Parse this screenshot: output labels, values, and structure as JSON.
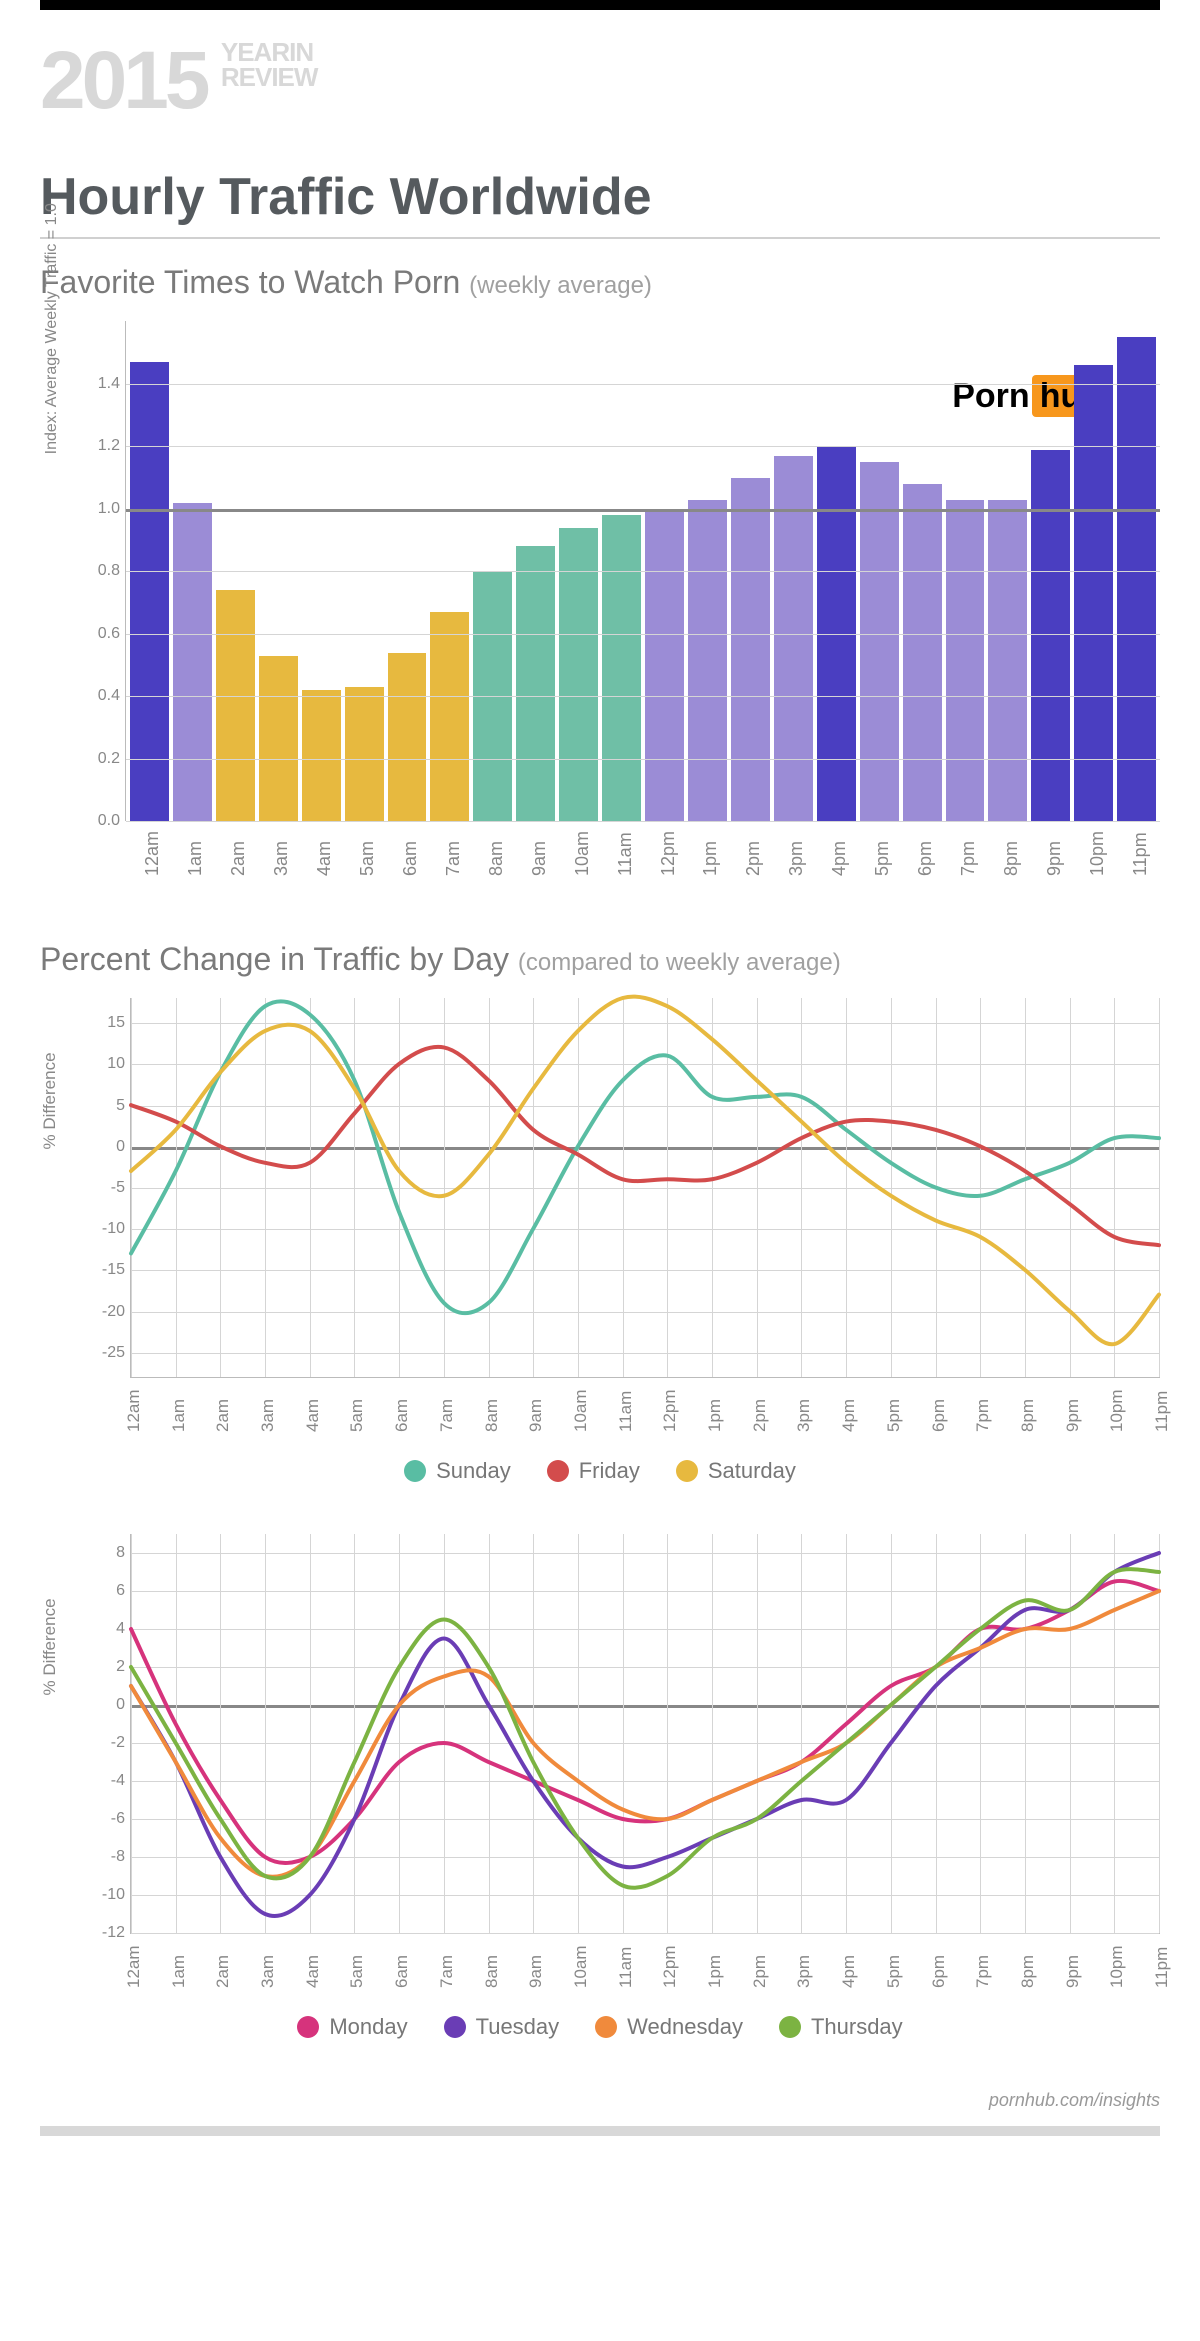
{
  "header": {
    "year": "2015",
    "sub_line1": "YEARIN",
    "sub_line2": "REVIEW"
  },
  "main_title": "Hourly Traffic Worldwide",
  "brand": {
    "left": "Porn",
    "right": "hub",
    "orange": "#f7971d"
  },
  "bar_chart": {
    "title": "Favorite Times to Watch Porn",
    "title_paren": "(weekly average)",
    "y_label": "Index: Average Weekly Traffic = 1.0",
    "ymax": 1.6,
    "yticks": [
      0.0,
      0.2,
      0.4,
      0.6,
      0.8,
      1.0,
      1.2,
      1.4
    ],
    "baseline_at": 1.0,
    "labels": [
      "12am",
      "1am",
      "2am",
      "3am",
      "4am",
      "5am",
      "6am",
      "7am",
      "8am",
      "9am",
      "10am",
      "11am",
      "12pm",
      "1pm",
      "2pm",
      "3pm",
      "4pm",
      "5pm",
      "6pm",
      "7pm",
      "8pm",
      "9pm",
      "10pm",
      "11pm"
    ],
    "values": [
      1.47,
      1.02,
      0.74,
      0.53,
      0.42,
      0.43,
      0.54,
      0.67,
      0.8,
      0.88,
      0.94,
      0.98,
      0.99,
      1.03,
      1.1,
      1.17,
      1.2,
      1.15,
      1.08,
      1.03,
      1.03,
      1.19,
      1.46,
      1.55
    ],
    "colors": [
      "#4a3ec1",
      "#9b8cd6",
      "#e7b93f",
      "#e7b93f",
      "#e7b93f",
      "#e7b93f",
      "#e7b93f",
      "#e7b93f",
      "#6fbfa6",
      "#6fbfa6",
      "#6fbfa6",
      "#6fbfa6",
      "#9b8cd6",
      "#9b8cd6",
      "#9b8cd6",
      "#9b8cd6",
      "#4a3ec1",
      "#9b8cd6",
      "#9b8cd6",
      "#9b8cd6",
      "#9b8cd6",
      "#4a3ec1",
      "#4a3ec1",
      "#4a3ec1"
    ],
    "grid_color": "#d5d5d5"
  },
  "section2_title": "Percent Change in Traffic by Day",
  "section2_paren": "(compared to weekly average)",
  "line_chart_1": {
    "y_label": "% Difference",
    "ymin": -28,
    "ymax": 18,
    "yticks": [
      -25,
      -20,
      -15,
      -10,
      -5,
      0,
      5,
      10,
      15
    ],
    "labels": [
      "12am",
      "1am",
      "2am",
      "3am",
      "4am",
      "5am",
      "6am",
      "7am",
      "8am",
      "9am",
      "10am",
      "11am",
      "12pm",
      "1pm",
      "2pm",
      "3pm",
      "4pm",
      "5pm",
      "6pm",
      "7pm",
      "8pm",
      "9pm",
      "10pm",
      "11pm"
    ],
    "series": [
      {
        "name": "Sunday",
        "color": "#59bda3",
        "values": [
          -13,
          -3,
          9,
          17,
          16,
          8,
          -8,
          -19,
          -19,
          -10,
          0,
          8,
          11,
          6,
          6,
          6,
          2,
          -2,
          -5,
          -6,
          -4,
          -2,
          1,
          1
        ]
      },
      {
        "name": "Friday",
        "color": "#d34c4c",
        "values": [
          5,
          3,
          0,
          -2,
          -2,
          4,
          10,
          12,
          8,
          2,
          -1,
          -4,
          -4,
          -4,
          -2,
          1,
          3,
          3,
          2,
          0,
          -3,
          -7,
          -11,
          -12
        ]
      },
      {
        "name": "Saturday",
        "color": "#e7b93f",
        "values": [
          -3,
          2,
          9,
          14,
          14,
          7,
          -3,
          -6,
          -1,
          7,
          14,
          18,
          17,
          13,
          8,
          3,
          -2,
          -6,
          -9,
          -11,
          -15,
          -20,
          -24,
          -18
        ]
      }
    ],
    "legend": [
      "Sunday",
      "Friday",
      "Saturday"
    ],
    "legend_colors": {
      "Sunday": "#59bda3",
      "Friday": "#d34c4c",
      "Saturday": "#e7b93f"
    },
    "line_width": 4
  },
  "line_chart_2": {
    "y_label": "% Difference",
    "ymin": -12,
    "ymax": 9,
    "yticks": [
      -12,
      -10,
      -8,
      -6,
      -4,
      -2,
      0,
      2,
      4,
      6,
      8
    ],
    "labels": [
      "12am",
      "1am",
      "2am",
      "3am",
      "4am",
      "5am",
      "6am",
      "7am",
      "8am",
      "9am",
      "10am",
      "11am",
      "12pm",
      "1pm",
      "2pm",
      "3pm",
      "4pm",
      "5pm",
      "6pm",
      "7pm",
      "8pm",
      "9pm",
      "10pm",
      "11pm"
    ],
    "series": [
      {
        "name": "Monday",
        "color": "#d6337c",
        "values": [
          4,
          -1,
          -5,
          -8,
          -8,
          -6,
          -3,
          -2,
          -3,
          -4,
          -5,
          -6,
          -6,
          -5,
          -4,
          -3,
          -1,
          1,
          2,
          4,
          4,
          5,
          6.5,
          6
        ]
      },
      {
        "name": "Tuesday",
        "color": "#6a3db5",
        "values": [
          1,
          -3,
          -8,
          -11,
          -10,
          -6,
          0,
          3.5,
          0,
          -4,
          -7,
          -8.5,
          -8,
          -7,
          -6,
          -5,
          -5,
          -2,
          1,
          3,
          5,
          5,
          7,
          8
        ]
      },
      {
        "name": "Wednesday",
        "color": "#f08a3c",
        "values": [
          1,
          -3,
          -7,
          -9,
          -8,
          -4,
          0,
          1.5,
          1.5,
          -2,
          -4,
          -5.5,
          -6,
          -5,
          -4,
          -3,
          -2,
          0,
          2,
          3,
          4,
          4,
          5,
          6
        ]
      },
      {
        "name": "Thursday",
        "color": "#7cb342",
        "values": [
          2,
          -2,
          -6,
          -9,
          -8,
          -3,
          2,
          4.5,
          2,
          -3,
          -7,
          -9.5,
          -9,
          -7,
          -6,
          -4,
          -2,
          0,
          2,
          4,
          5.5,
          5,
          7,
          7
        ]
      }
    ],
    "legend": [
      "Monday",
      "Tuesday",
      "Wednesday",
      "Thursday"
    ],
    "legend_colors": {
      "Monday": "#d6337c",
      "Tuesday": "#6a3db5",
      "Wednesday": "#f08a3c",
      "Thursday": "#7cb342"
    },
    "line_width": 4
  },
  "footer": "pornhub.com/insights"
}
